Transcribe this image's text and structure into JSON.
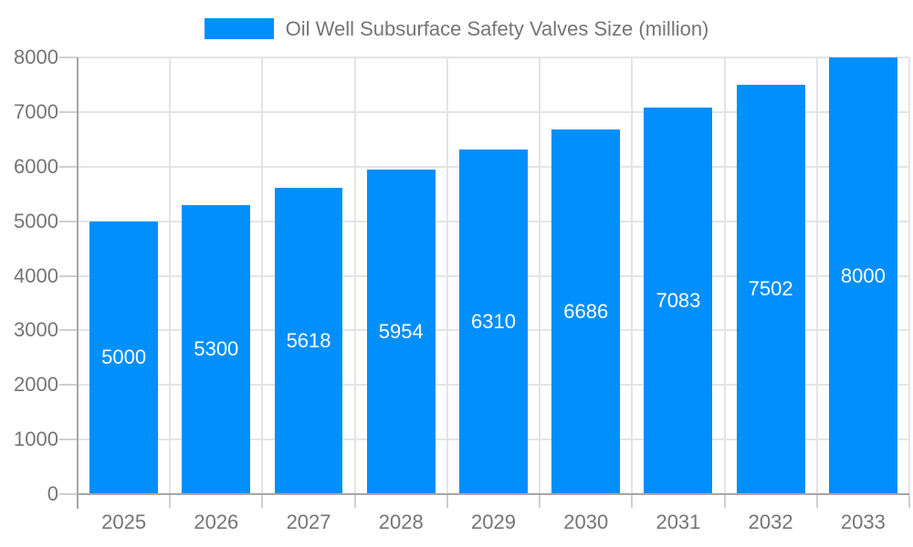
{
  "chart_data": {
    "type": "bar",
    "title": "Oil Well Subsurface Safety Valves Size (million)",
    "categories": [
      "2025",
      "2026",
      "2027",
      "2028",
      "2029",
      "2030",
      "2031",
      "2032",
      "2033"
    ],
    "series": [
      {
        "name": "Oil Well Subsurface Safety Valves Size (million)",
        "values": [
          5000,
          5300,
          5618,
          5954,
          6310,
          6686,
          7083,
          7502,
          8000
        ]
      }
    ],
    "value_labels": [
      "5000",
      "5300",
      "5618",
      "5954",
      "6310",
      "6686",
      "7083",
      "7502",
      "8000"
    ],
    "xlabel": "",
    "ylabel": "",
    "ylim": [
      0,
      8000
    ],
    "ytick_step": 1000,
    "yticks": [
      0,
      1000,
      2000,
      3000,
      4000,
      5000,
      6000,
      7000,
      8000
    ],
    "grid": true,
    "legend_position": "top-center",
    "bar_labels_position": "inside-center",
    "colors": {
      "bar": "#008FFB",
      "grid": "#e4e4e4",
      "tick": "#cfcfcf",
      "axis": "#a6a6a6",
      "label_text": "#757575",
      "value_label_text": "#ffffff",
      "background": "#ffffff"
    }
  }
}
